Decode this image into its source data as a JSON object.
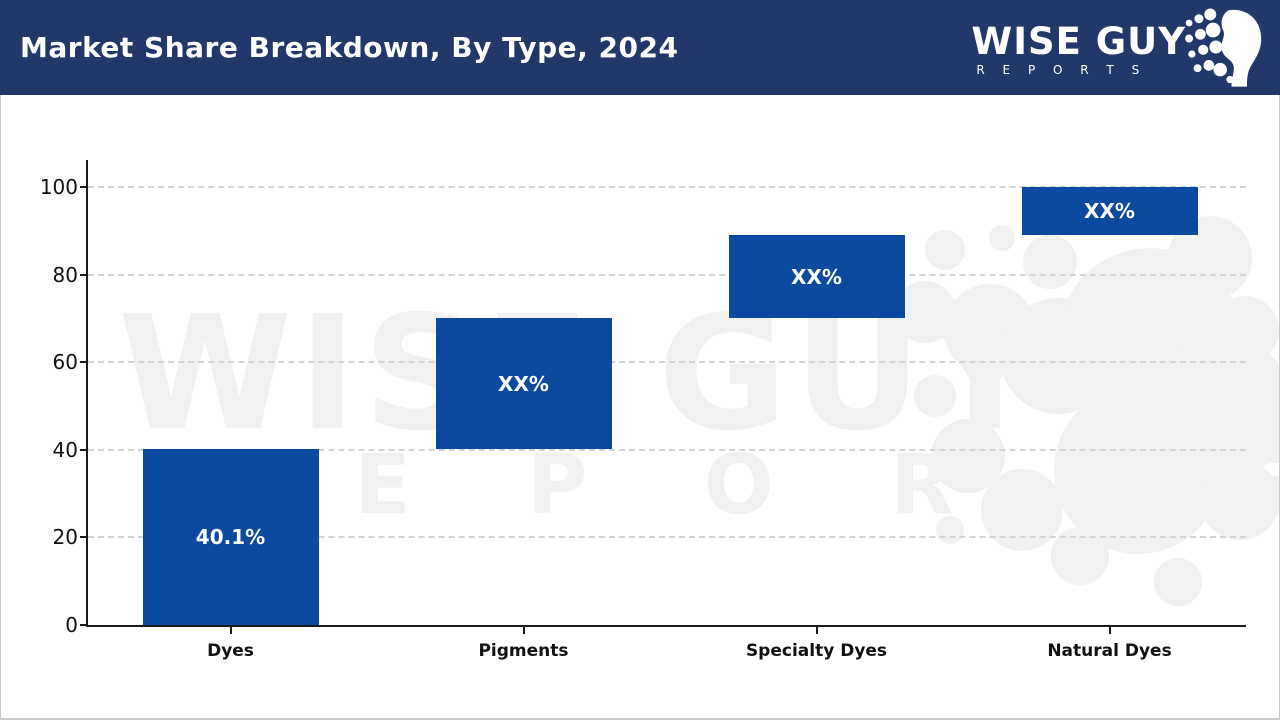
{
  "header": {
    "title": "Market Share Breakdown, By Type, 2024",
    "logo": {
      "line1": "WISE GUY",
      "line2": "R E P O R T S"
    }
  },
  "watermark": {
    "line1": "WISE GUY",
    "line2": "R E P O R T S"
  },
  "chart_data": {
    "type": "bar",
    "subtype": "waterfall",
    "title": "Market Share Breakdown, By Type, 2024",
    "categories": [
      "Dyes",
      "Pigments",
      "Specialty Dyes",
      "Natural Dyes"
    ],
    "segments": [
      {
        "category": "Dyes",
        "start": 0,
        "end": 40.1,
        "label": "40.1%"
      },
      {
        "category": "Pigments",
        "start": 40.1,
        "end": 70,
        "label": "XX%"
      },
      {
        "category": "Specialty Dyes",
        "start": 70,
        "end": 89,
        "label": "XX%"
      },
      {
        "category": "Natural Dyes",
        "start": 89,
        "end": 100,
        "label": "XX%"
      }
    ],
    "yticks": [
      0,
      20,
      40,
      60,
      80,
      100
    ],
    "ylim": [
      0,
      106
    ],
    "xlabel": "",
    "ylabel": "",
    "grid": "horizontal-dashed",
    "legend": "none",
    "colors": {
      "bar": "#0b4a9e",
      "grid": "#d4d4d4",
      "axis": "#1a1a1a",
      "header_bg": "#22386a",
      "bar_label": "#ffffff",
      "watermark": "#f1f1f1"
    }
  }
}
